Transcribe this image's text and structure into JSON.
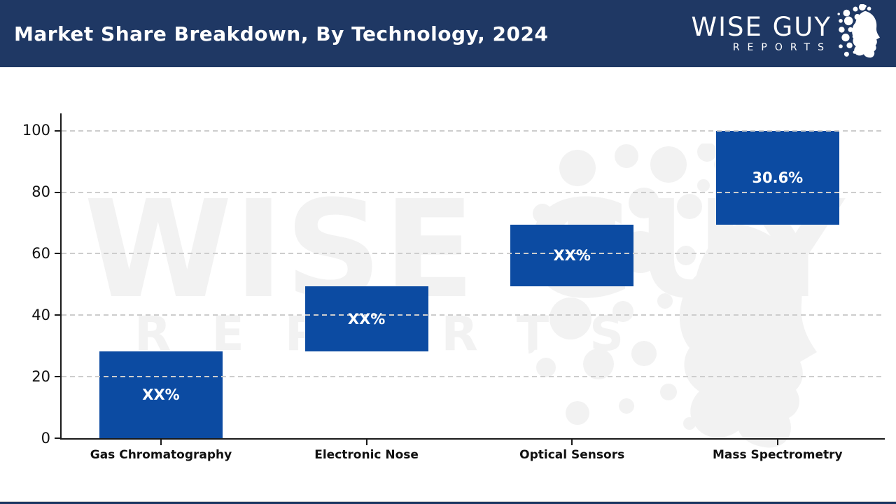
{
  "header": {
    "title": "Market Share Breakdown, By Technology, 2024",
    "bg_color": "#1f3864",
    "logo": {
      "line1": "WISE GUY",
      "line2": "REPORTS",
      "face_icon": "dotted-face-profile"
    }
  },
  "watermark": {
    "line1": "WISE GUY",
    "line2": "REPORTS",
    "color": "#f2f2f2"
  },
  "chart_data": {
    "type": "bar",
    "subtype": "waterfall",
    "title": "Market Share Breakdown, By Technology, 2024",
    "xlabel": "",
    "ylabel": "",
    "categories": [
      "Gas Chromatography",
      "Electronic Nose",
      "Optical Sensors",
      "Mass Spectrometry"
    ],
    "segments": [
      {
        "category": "Gas Chromatography",
        "start": 0,
        "end": 28.3,
        "value_label": "XX%"
      },
      {
        "category": "Electronic Nose",
        "start": 28.3,
        "end": 49.3,
        "value_label": "XX%"
      },
      {
        "category": "Optical Sensors",
        "start": 49.3,
        "end": 69.4,
        "value_label": "XX%"
      },
      {
        "category": "Mass Spectrometry",
        "start": 69.4,
        "end": 100,
        "value_label": "30.6%"
      }
    ],
    "yticks": [
      0,
      20,
      40,
      60,
      80,
      100
    ],
    "ylim": [
      0,
      105
    ],
    "grid": "horizontal-dashed",
    "grid_over_bars": true,
    "bar_color": "#0c4ba2",
    "bar_label_color": "#ffffff",
    "axis_color": "#1a1a1a",
    "legend": "none"
  }
}
